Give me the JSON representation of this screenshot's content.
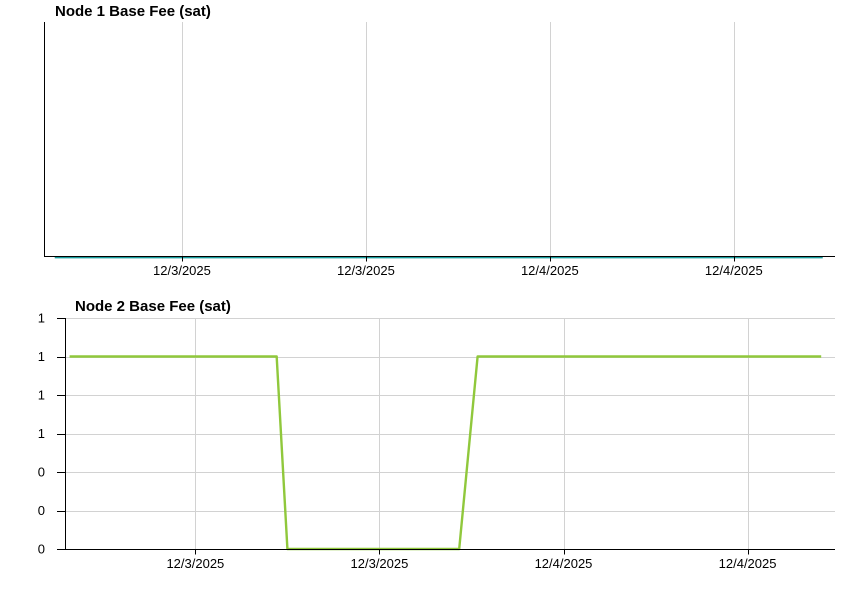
{
  "page": {
    "background": "#FFFFFF"
  },
  "colors": {
    "axis": "#000000",
    "grid": "#D2D2D2",
    "tick_label": "#000000"
  },
  "chart_data": [
    {
      "name": "node1-base-fee",
      "type": "line",
      "title": "Node 1 Base Fee (sat)",
      "line_color": "#1A9E9E",
      "x_unit": "hours from 12/3/2025 00:00",
      "x_range_hours": [
        -9.0,
        42.6
      ],
      "x_ticks": [
        {
          "hour": 0,
          "label": "12/3/2025"
        },
        {
          "hour": 12,
          "label": "12/3/2025"
        },
        {
          "hour": 24,
          "label": "12/4/2025"
        },
        {
          "hour": 36,
          "label": "12/4/2025"
        }
      ],
      "ylabel": "",
      "y_range": [
        0,
        1
      ],
      "y_ticks": [],
      "grid": {
        "vertical": true,
        "horizontal": false
      },
      "legend": "none",
      "points": [
        {
          "hour": -8.3,
          "value": 0
        },
        {
          "hour": 41.8,
          "value": 0
        }
      ]
    },
    {
      "name": "node2-base-fee",
      "type": "line",
      "title": "Node 2 Base Fee (sat)",
      "line_color": "#90C83C",
      "x_unit": "hours from 12/3/2025 00:00",
      "x_range_hours": [
        -8.5,
        41.7
      ],
      "x_ticks": [
        {
          "hour": 0,
          "label": "12/3/2025"
        },
        {
          "hour": 12,
          "label": "12/3/2025"
        },
        {
          "hour": 24,
          "label": "12/4/2025"
        },
        {
          "hour": 36,
          "label": "12/4/2025"
        }
      ],
      "ylabel": "",
      "y_range": [
        0,
        1.2
      ],
      "y_ticks": [
        {
          "value": 1.2,
          "label": "1"
        },
        {
          "value": 1.0,
          "label": "1"
        },
        {
          "value": 0.8,
          "label": "1"
        },
        {
          "value": 0.6,
          "label": "1"
        },
        {
          "value": 0.4,
          "label": "0"
        },
        {
          "value": 0.2,
          "label": "0"
        },
        {
          "value": 0.0,
          "label": "0"
        }
      ],
      "grid": {
        "vertical": true,
        "horizontal": true
      },
      "legend": "none",
      "points": [
        {
          "hour": -8.2,
          "value": 1
        },
        {
          "hour": 5.3,
          "value": 1
        },
        {
          "hour": 6.0,
          "value": 0
        },
        {
          "hour": 17.2,
          "value": 0
        },
        {
          "hour": 18.4,
          "value": 1
        },
        {
          "hour": 40.8,
          "value": 1
        }
      ]
    }
  ]
}
